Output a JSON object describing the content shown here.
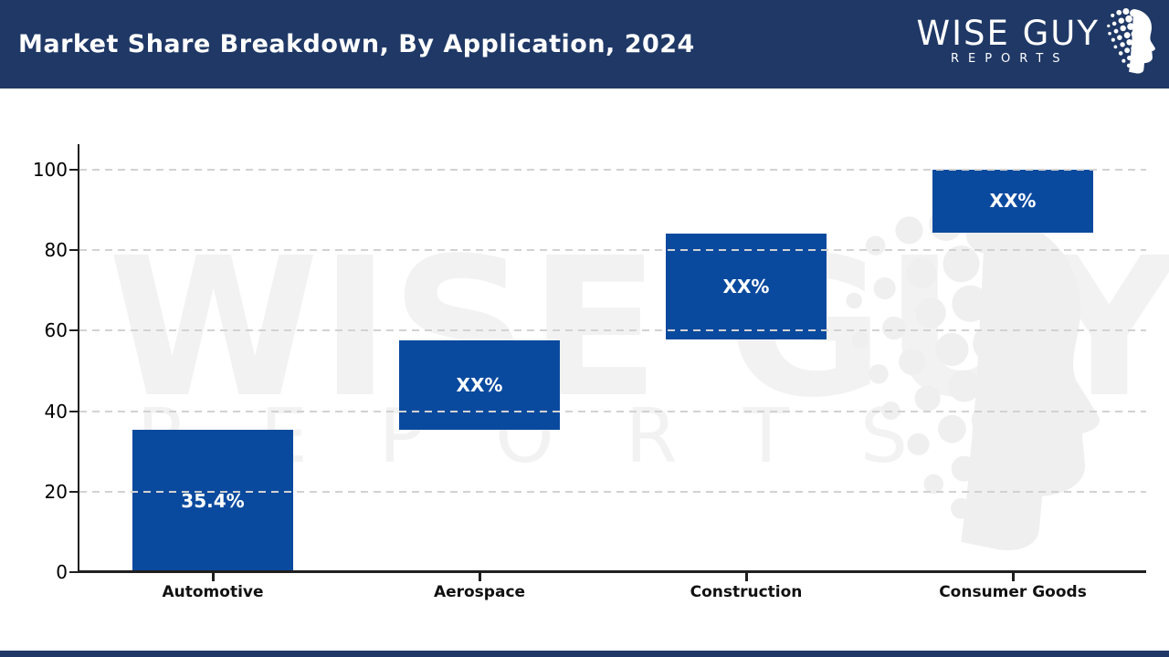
{
  "header": {
    "title": "Market Share Breakdown, By Application, 2024",
    "bg_color": "#1f3866",
    "logo": {
      "line1": "WISE GUY",
      "line2": "REPORTS"
    }
  },
  "watermark": {
    "line1": "WISE GUY",
    "line2": "REPORTS"
  },
  "chart_data": {
    "type": "bar",
    "variant": "floating-segment-waterfall",
    "title": "Market Share Breakdown, By Application, 2024",
    "categories": [
      "Automotive",
      "Aerospace",
      "Construction",
      "Consumer Goods"
    ],
    "series": [
      {
        "name": "Market Share (%)",
        "ranges": [
          [
            0,
            35.4
          ],
          [
            35.4,
            57.6
          ],
          [
            57.9,
            84.1
          ],
          [
            84.4,
            100
          ]
        ],
        "labels": [
          "35.4%",
          "XX%",
          "XX%",
          "XX%"
        ]
      }
    ],
    "ylim": [
      0,
      100
    ],
    "yticks": [
      0,
      20,
      40,
      60,
      80,
      100
    ],
    "xlabel": "",
    "ylabel": "",
    "grid": "horizontal-dashed",
    "legend": "none",
    "gridline_color": "#d2d2d2",
    "bar_color": "#0a4a9e",
    "bar_label_color": "#ffffff",
    "axis_color": "#1f1f1f",
    "tick_label_color": "#000000"
  },
  "footer": {
    "bg_color": "#1f3866"
  }
}
